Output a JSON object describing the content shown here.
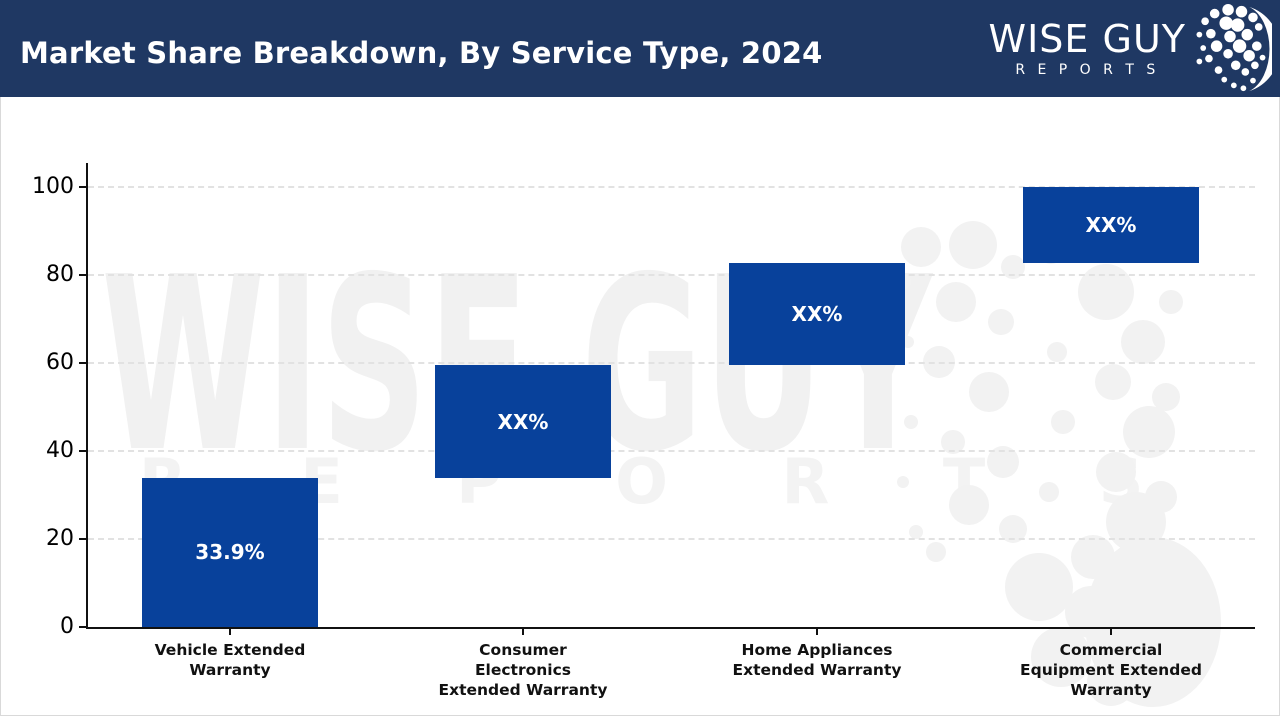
{
  "header": {
    "title": "Market Share Breakdown, By Service Type, 2024",
    "bg_color": "#1f3863",
    "brand": {
      "wordmark": "WISE GUY",
      "subtitle": "R E P O R T S"
    }
  },
  "watermark": {
    "wordmark": "WISE GUY",
    "subtitle": "R E P O R T S"
  },
  "chart_data": {
    "type": "bar",
    "subtype": "stepped-waterfall-columns",
    "title": "Market Share Breakdown, By Service Type, 2024",
    "categories": [
      [
        "Vehicle Extended",
        "Warranty"
      ],
      [
        "Consumer",
        "Electronics",
        "Extended Warranty"
      ],
      [
        "Home Appliances",
        "Extended Warranty"
      ],
      [
        "Commercial",
        "Equipment Extended",
        "Warranty"
      ]
    ],
    "segments": [
      {
        "category": "Vehicle Extended Warranty",
        "start": 0,
        "end": 33.9,
        "label": "33.9%"
      },
      {
        "category": "Consumer Electronics Extended Warranty",
        "start": 33.9,
        "end": 59.5,
        "label": "XX%"
      },
      {
        "category": "Home Appliances Extended Warranty",
        "start": 59.5,
        "end": 82.8,
        "label": "XX%"
      },
      {
        "category": "Commercial Equipment Extended Warranty",
        "start": 82.8,
        "end": 100,
        "label": "XX%"
      }
    ],
    "ylim": [
      0,
      100
    ],
    "yticks": [
      0,
      20,
      40,
      60,
      80,
      100
    ],
    "grid": "horizontal-dashed",
    "legend": "none",
    "bar_color": "#08419b",
    "value_label_color": "#ffffff",
    "axis_color": "#111111"
  }
}
